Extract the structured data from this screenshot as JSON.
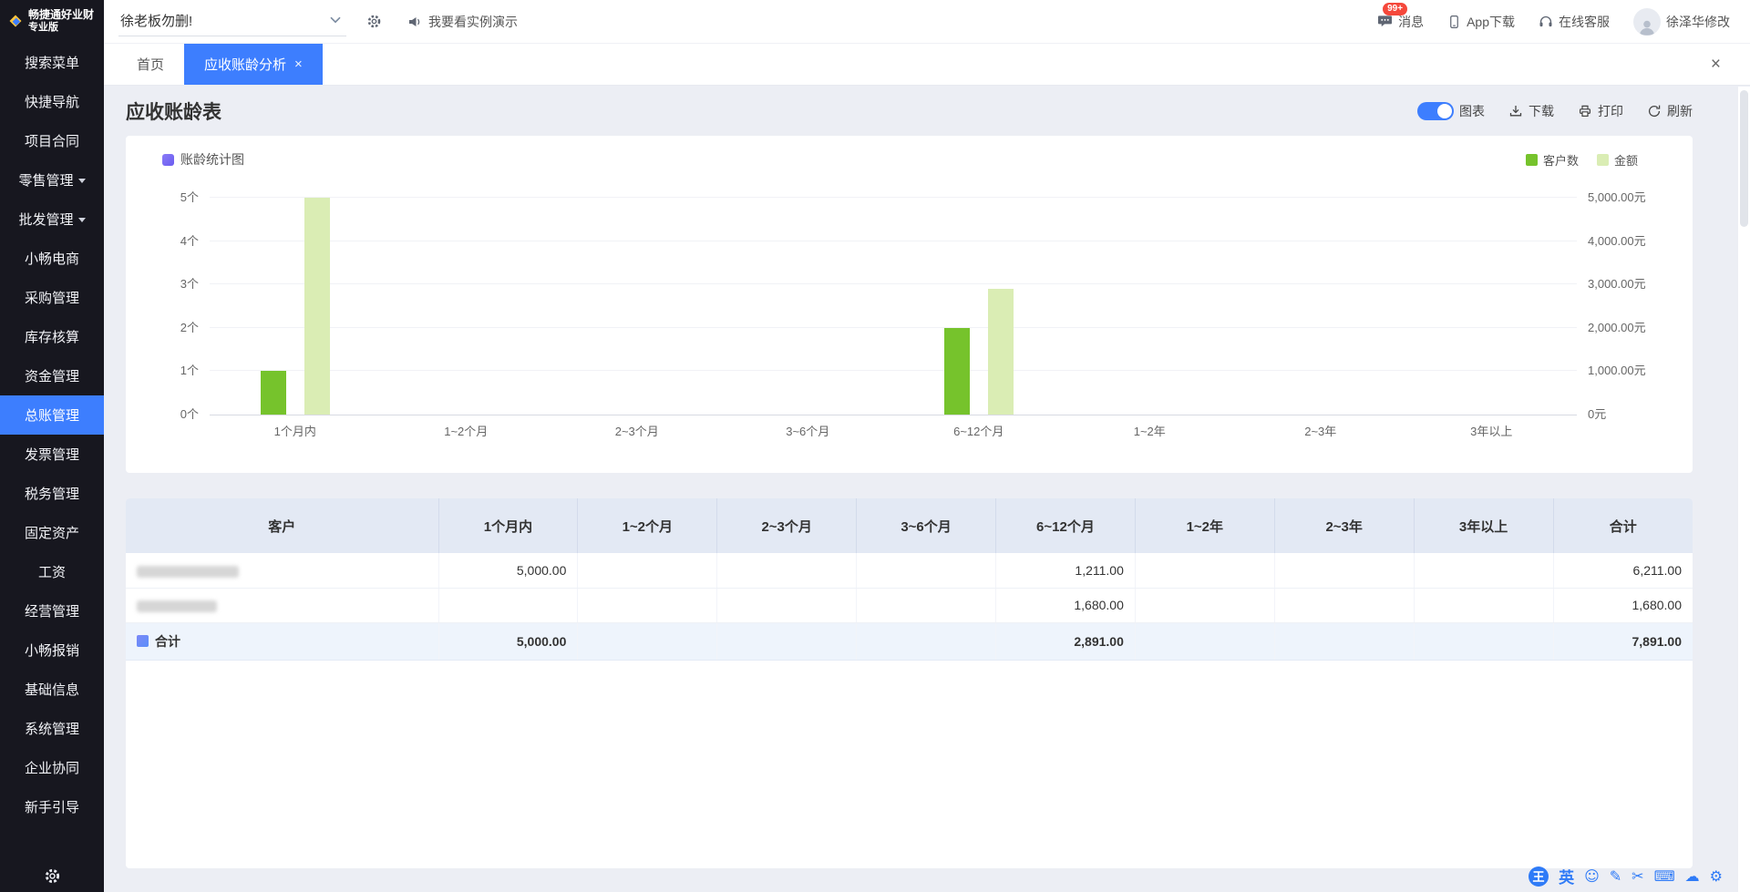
{
  "app": {
    "logo_line1": "畅捷通好业财",
    "logo_line2": "专业版"
  },
  "sidebar": {
    "items": [
      {
        "label": "搜索菜单"
      },
      {
        "label": "快捷导航"
      },
      {
        "label": "项目合同"
      },
      {
        "label": "零售管理",
        "arrow": true
      },
      {
        "label": "批发管理",
        "arrow": true
      },
      {
        "label": "小畅电商"
      },
      {
        "label": "采购管理"
      },
      {
        "label": "库存核算"
      },
      {
        "label": "资金管理"
      },
      {
        "label": "总账管理",
        "active": true
      },
      {
        "label": "发票管理"
      },
      {
        "label": "税务管理"
      },
      {
        "label": "固定资产"
      },
      {
        "label": "工资"
      },
      {
        "label": "经营管理"
      },
      {
        "label": "小畅报销"
      },
      {
        "label": "基础信息"
      },
      {
        "label": "系统管理"
      },
      {
        "label": "企业协同"
      },
      {
        "label": "新手引导"
      }
    ]
  },
  "topbar": {
    "company_selector": "徐老板勿删!",
    "demo_label": "我要看实例演示",
    "message_label": "消息",
    "message_badge": "99+",
    "app_download_label": "App下载",
    "online_service_label": "在线客服",
    "username": "徐泽华修改"
  },
  "tabs": [
    {
      "label": "首页"
    },
    {
      "label": "应收账龄分析",
      "active": true
    }
  ],
  "icons": {
    "close_glyph": "×"
  },
  "page": {
    "title": "应收账龄表",
    "chart_toggle_label": "图表",
    "chart_toggle_on": true,
    "download_label": "下载",
    "print_label": "打印",
    "refresh_label": "刷新"
  },
  "chart_data": {
    "type": "bar",
    "title": "账龄统计图",
    "categories": [
      "1个月内",
      "1~2个月",
      "2~3个月",
      "3~6个月",
      "6~12个月",
      "1~2年",
      "2~3年",
      "3年以上"
    ],
    "series": [
      {
        "name": "客户数",
        "axis": "left",
        "color": "#76c32c",
        "values": [
          1,
          0,
          0,
          0,
          2,
          0,
          0,
          0
        ]
      },
      {
        "name": "金额",
        "axis": "right",
        "color": "#daedb4",
        "values": [
          5000,
          0,
          0,
          0,
          2891,
          0,
          0,
          0
        ]
      }
    ],
    "left_axis": {
      "max": 5,
      "ticks_bottom_to_top": [
        "0个",
        "1个",
        "2个",
        "3个",
        "4个",
        "5个"
      ]
    },
    "right_axis": {
      "max": 5000,
      "ticks_bottom_to_top": [
        "0元",
        "1,000.00元",
        "2,000.00元",
        "3,000.00元",
        "4,000.00元",
        "5,000.00元"
      ]
    },
    "legend_position": "top-right",
    "grid": true
  },
  "table": {
    "headers": [
      "客户",
      "1个月内",
      "1~2个月",
      "2~3个月",
      "3~6个月",
      "6~12个月",
      "1~2年",
      "2~3年",
      "3年以上",
      "合计"
    ],
    "rows": [
      {
        "customer_redacted": true,
        "values": [
          "5,000.00",
          "",
          "",
          "",
          "1,211.00",
          "",
          "",
          "",
          "6,211.00"
        ]
      },
      {
        "customer_redacted": true,
        "values": [
          "",
          "",
          "",
          "",
          "1,680.00",
          "",
          "",
          "",
          "1,680.00"
        ]
      }
    ],
    "total_row": {
      "label": "合计",
      "values": [
        "5,000.00",
        "",
        "",
        "",
        "2,891.00",
        "",
        "",
        "",
        "7,891.00"
      ]
    }
  },
  "ime": {
    "logo_glyph": "王",
    "lang_glyph": "英",
    "icons": [
      {
        "name": "emoji-icon",
        "glyph": "☺"
      },
      {
        "name": "pen-icon",
        "glyph": "✎"
      },
      {
        "name": "scissors-icon",
        "glyph": "✂"
      },
      {
        "name": "keyboard-icon",
        "glyph": "⌨"
      },
      {
        "name": "cloud-icon",
        "glyph": "☁"
      },
      {
        "name": "gear-icon",
        "glyph": "⚙"
      }
    ]
  }
}
